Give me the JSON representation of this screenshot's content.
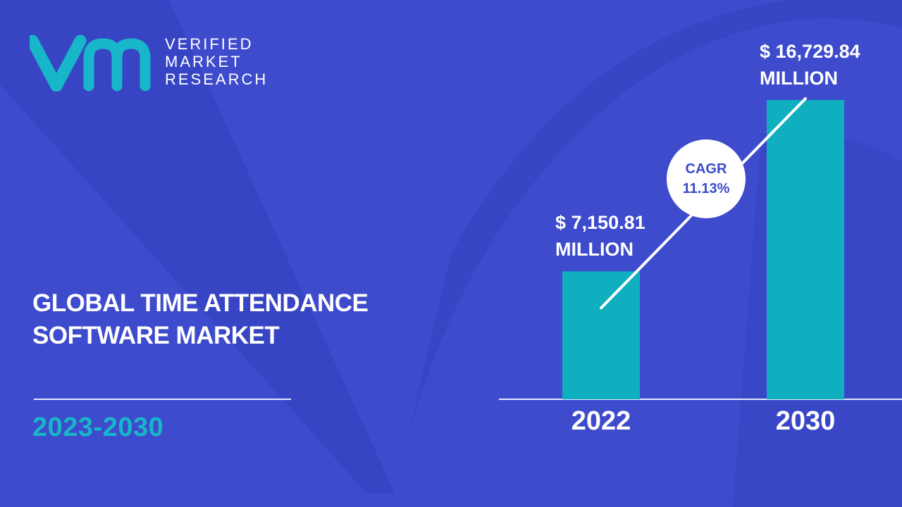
{
  "brand": {
    "line1": "VERIFIED",
    "line2": "MARKET",
    "line3": "RESEARCH",
    "colors": {
      "background": "#3d4bcc",
      "accent": "#17b7c9",
      "bar": "#0fafc0"
    }
  },
  "title": {
    "line1": "GLOBAL TIME ATTENDANCE",
    "line2": "SOFTWARE MARKET"
  },
  "period": "2023-2030",
  "cagr": {
    "label": "CAGR",
    "value": "11.13%"
  },
  "chart_data": {
    "type": "bar",
    "categories": [
      "2022",
      "2030"
    ],
    "values": [
      7150.81,
      16729.84
    ],
    "value_labels": [
      {
        "line1": "$ 7,150.81",
        "line2": "MILLION"
      },
      {
        "line1": "$ 16,729.84",
        "line2": "MILLION"
      }
    ],
    "title": "",
    "xlabel": "",
    "ylabel": "",
    "ylim": [
      0,
      16729.84
    ],
    "grid": false,
    "legend": "none"
  }
}
